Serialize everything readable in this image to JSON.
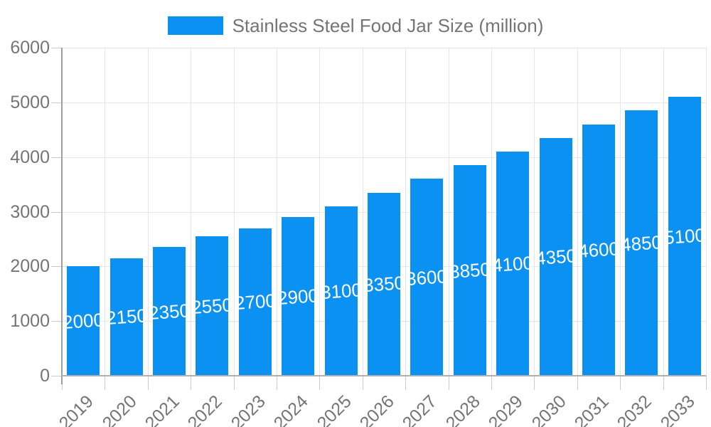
{
  "legend": {
    "label": "Stainless Steel Food Jar Size (million)"
  },
  "colors": {
    "bar": "#0a91f2",
    "bar_label": "#ffffff",
    "grid": "#e6e6e6",
    "x_axis": "#b0b0b0",
    "y_axis": "#9e9e9e",
    "tick": "#cccccc",
    "text": "#757575",
    "background": "#ffffff"
  },
  "chart_data": {
    "type": "bar",
    "title": "Stainless Steel Food Jar Size (million)",
    "series_name": "Stainless Steel Food Jar Size (million)",
    "categories": [
      "2019",
      "2020",
      "2021",
      "2022",
      "2023",
      "2024",
      "2025",
      "2026",
      "2027",
      "2028",
      "2029",
      "2030",
      "2031",
      "2032",
      "2033"
    ],
    "values": [
      2000,
      2150,
      2350,
      2550,
      2700,
      2900,
      3100,
      3350,
      3600,
      3850,
      4100,
      4350,
      4600,
      4850,
      5100
    ],
    "bar_value_labels": [
      "2000",
      "2150",
      "2350",
      "2550",
      "2700",
      "2900",
      "3100",
      "3350",
      "3600",
      "3850",
      "4100",
      "4350",
      "4600",
      "4850",
      "5100"
    ],
    "y_ticks": [
      "0",
      "1000",
      "2000",
      "3000",
      "4000",
      "5000",
      "6000"
    ],
    "ylim": [
      0,
      6000
    ],
    "xlabel": "",
    "ylabel": "",
    "grid": true,
    "legend_position": "top-center",
    "x_label_rotation_deg": -45,
    "bar_label_position": "inside-center"
  }
}
